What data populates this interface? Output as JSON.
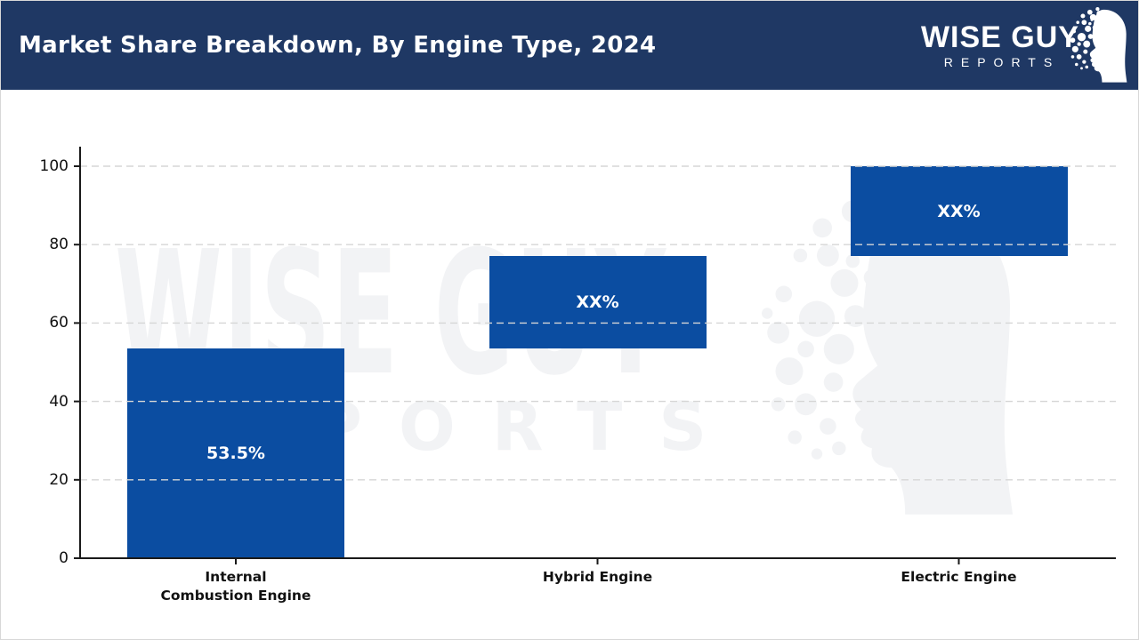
{
  "header": {
    "logo": {
      "wordmark": "WISE GUY",
      "subtitle": "REPORTS"
    }
  },
  "watermark": {
    "wordmark": "WISE GUY",
    "subtitle": "REPORTS"
  },
  "chart_data": {
    "type": "bar",
    "subtype": "waterfall",
    "title": "Market Share Breakdown, By Engine Type, 2024",
    "categories": [
      "Internal\nCombustion Engine",
      "Hybrid Engine",
      "Electric Engine"
    ],
    "segments": [
      {
        "category": "Internal Combustion Engine",
        "start": 0,
        "end": 53.5,
        "label": "53.5%"
      },
      {
        "category": "Hybrid Engine",
        "start": 53.5,
        "end": 77,
        "label": "XX%"
      },
      {
        "category": "Electric Engine",
        "start": 77,
        "end": 100,
        "label": "XX%"
      }
    ],
    "ylim": [
      0,
      100
    ],
    "yticks": [
      0,
      20,
      40,
      60,
      80,
      100
    ],
    "xlabel": "",
    "ylabel": "",
    "grid": "horizontal-dashed",
    "legend": "none",
    "colors": {
      "bar": "#0b4da1",
      "bar_label": "#ffffff",
      "header_bg": "#1f3864",
      "gridline": "#d6d6d6",
      "axis": "#1a1a1a",
      "watermark": "#f2f3f5"
    }
  }
}
